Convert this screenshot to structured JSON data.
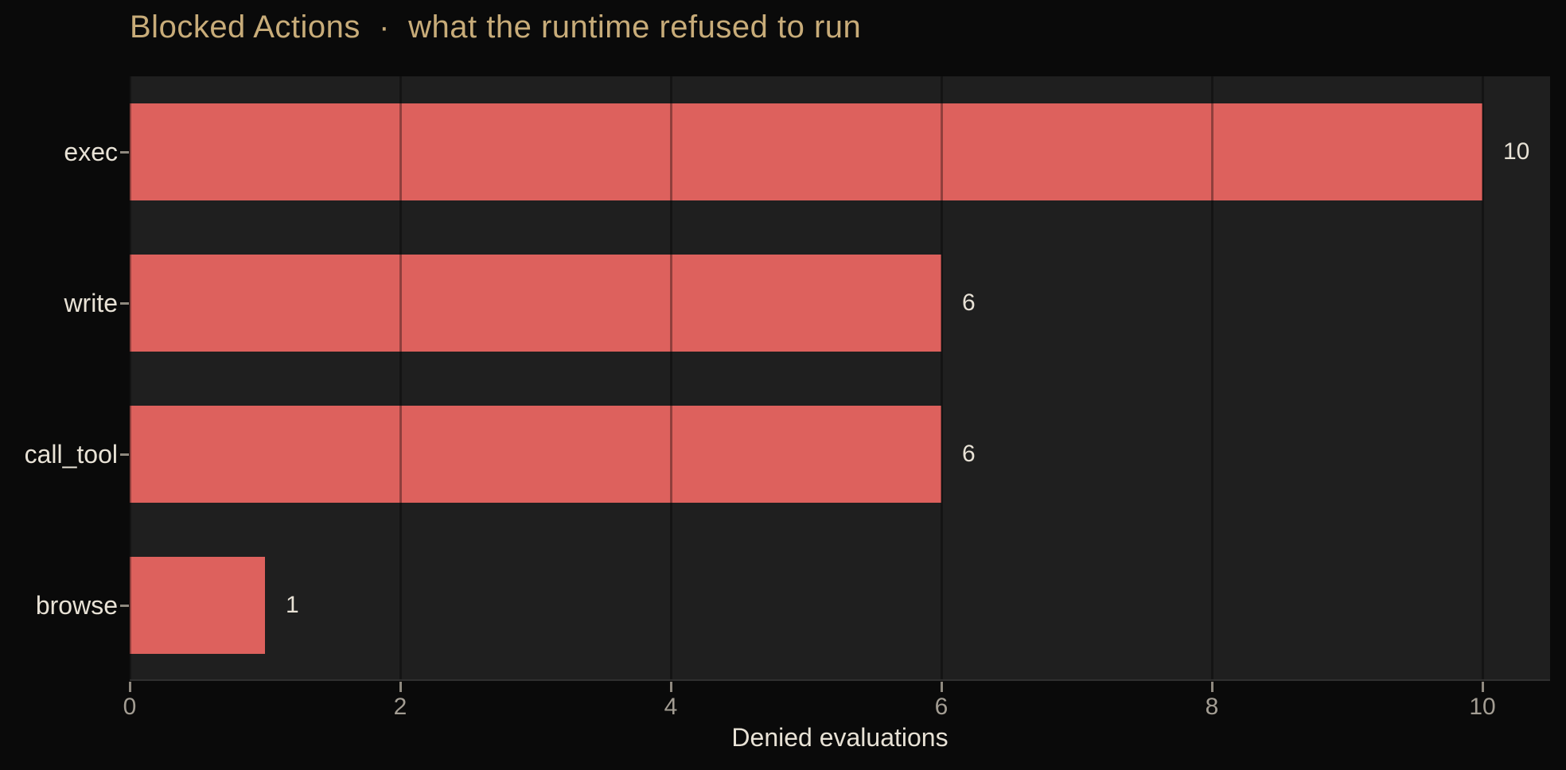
{
  "chart_data": {
    "type": "bar",
    "orientation": "horizontal",
    "title": "Blocked Actions  ·  what the runtime refused to run",
    "xlabel": "Denied evaluations",
    "ylabel": "",
    "categories": [
      "exec",
      "write",
      "call_tool",
      "browse"
    ],
    "values": [
      10,
      6,
      6,
      1
    ],
    "value_labels": [
      "10",
      "6",
      "6",
      "1"
    ],
    "x_ticks": [
      "0",
      "2",
      "4",
      "6",
      "8",
      "10"
    ],
    "x_tick_values": [
      0,
      2,
      4,
      6,
      8,
      10
    ],
    "xlim": [
      0,
      10.5
    ],
    "grid": true,
    "legend_position": "none"
  },
  "theme": {
    "outer_background": "#0a0a0a",
    "plot_background": "#1f1f1f",
    "bar_color": "#dd615d",
    "title_color": "#c8ac79",
    "category_label_color": "#e8e2d6",
    "value_label_color": "#e8e2d6",
    "tick_label_color": "#a39d93",
    "tick_mark_color": "#8f897f",
    "gridline_color": "rgba(0,0,0,0.35)"
  }
}
